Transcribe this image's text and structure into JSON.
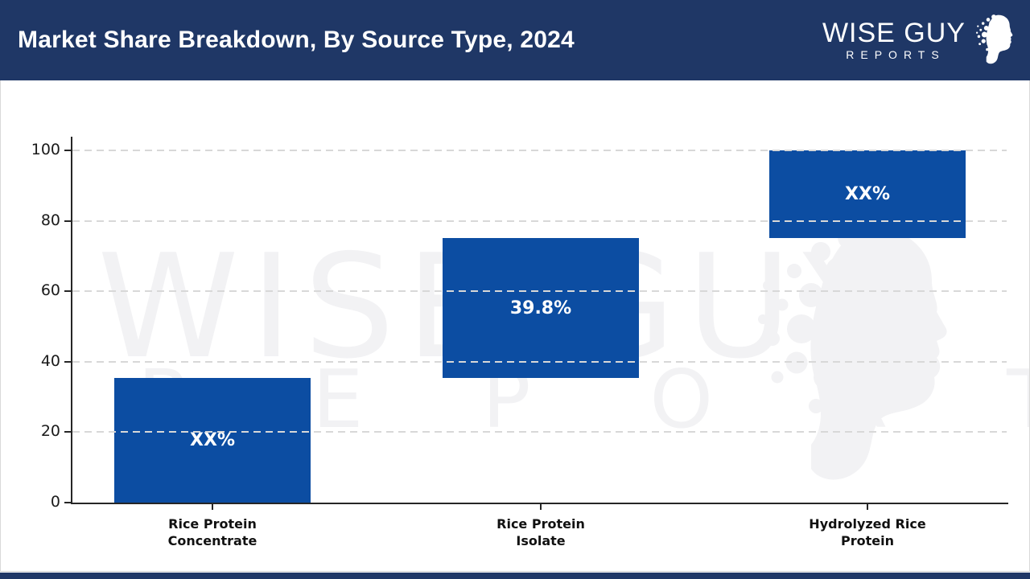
{
  "header": {
    "title": "Market Share Breakdown, By Source Type, 2024",
    "logo": {
      "brand": "WISE GUY",
      "sub": "REPORTS"
    }
  },
  "watermark": {
    "line1": "WISE GUY",
    "line2": "R E P O R T S"
  },
  "chart_data": {
    "type": "bar",
    "subtype": "waterfall",
    "title": "Market Share Breakdown, By Source Type, 2024",
    "categories": [
      [
        "Rice Protein",
        "Concentrate"
      ],
      [
        "Rice Protein",
        "Isolate"
      ],
      [
        "Hydrolyzed Rice",
        "Protein"
      ]
    ],
    "segments": [
      {
        "category": "Rice Protein Concentrate",
        "start": 0,
        "end": 35.3,
        "value": 35.3,
        "label": "XX%"
      },
      {
        "category": "Rice Protein Isolate",
        "start": 35.3,
        "end": 75.1,
        "value": 39.8,
        "label": "39.8%"
      },
      {
        "category": "Hydrolyzed Rice Protein",
        "start": 75.1,
        "end": 100,
        "value": 24.9,
        "label": "XX%"
      }
    ],
    "yticks": [
      0,
      20,
      40,
      60,
      80,
      100
    ],
    "ylim": [
      0,
      104
    ],
    "xlabel": "",
    "ylabel": "",
    "legend": "none",
    "grid": "horizontal-dashed",
    "bar_color": "#0c4da2",
    "bar_label_color": "#ffffff",
    "axis_color": "#262626",
    "grid_color": "#d8d8d8",
    "header_color": "#1f3766"
  }
}
